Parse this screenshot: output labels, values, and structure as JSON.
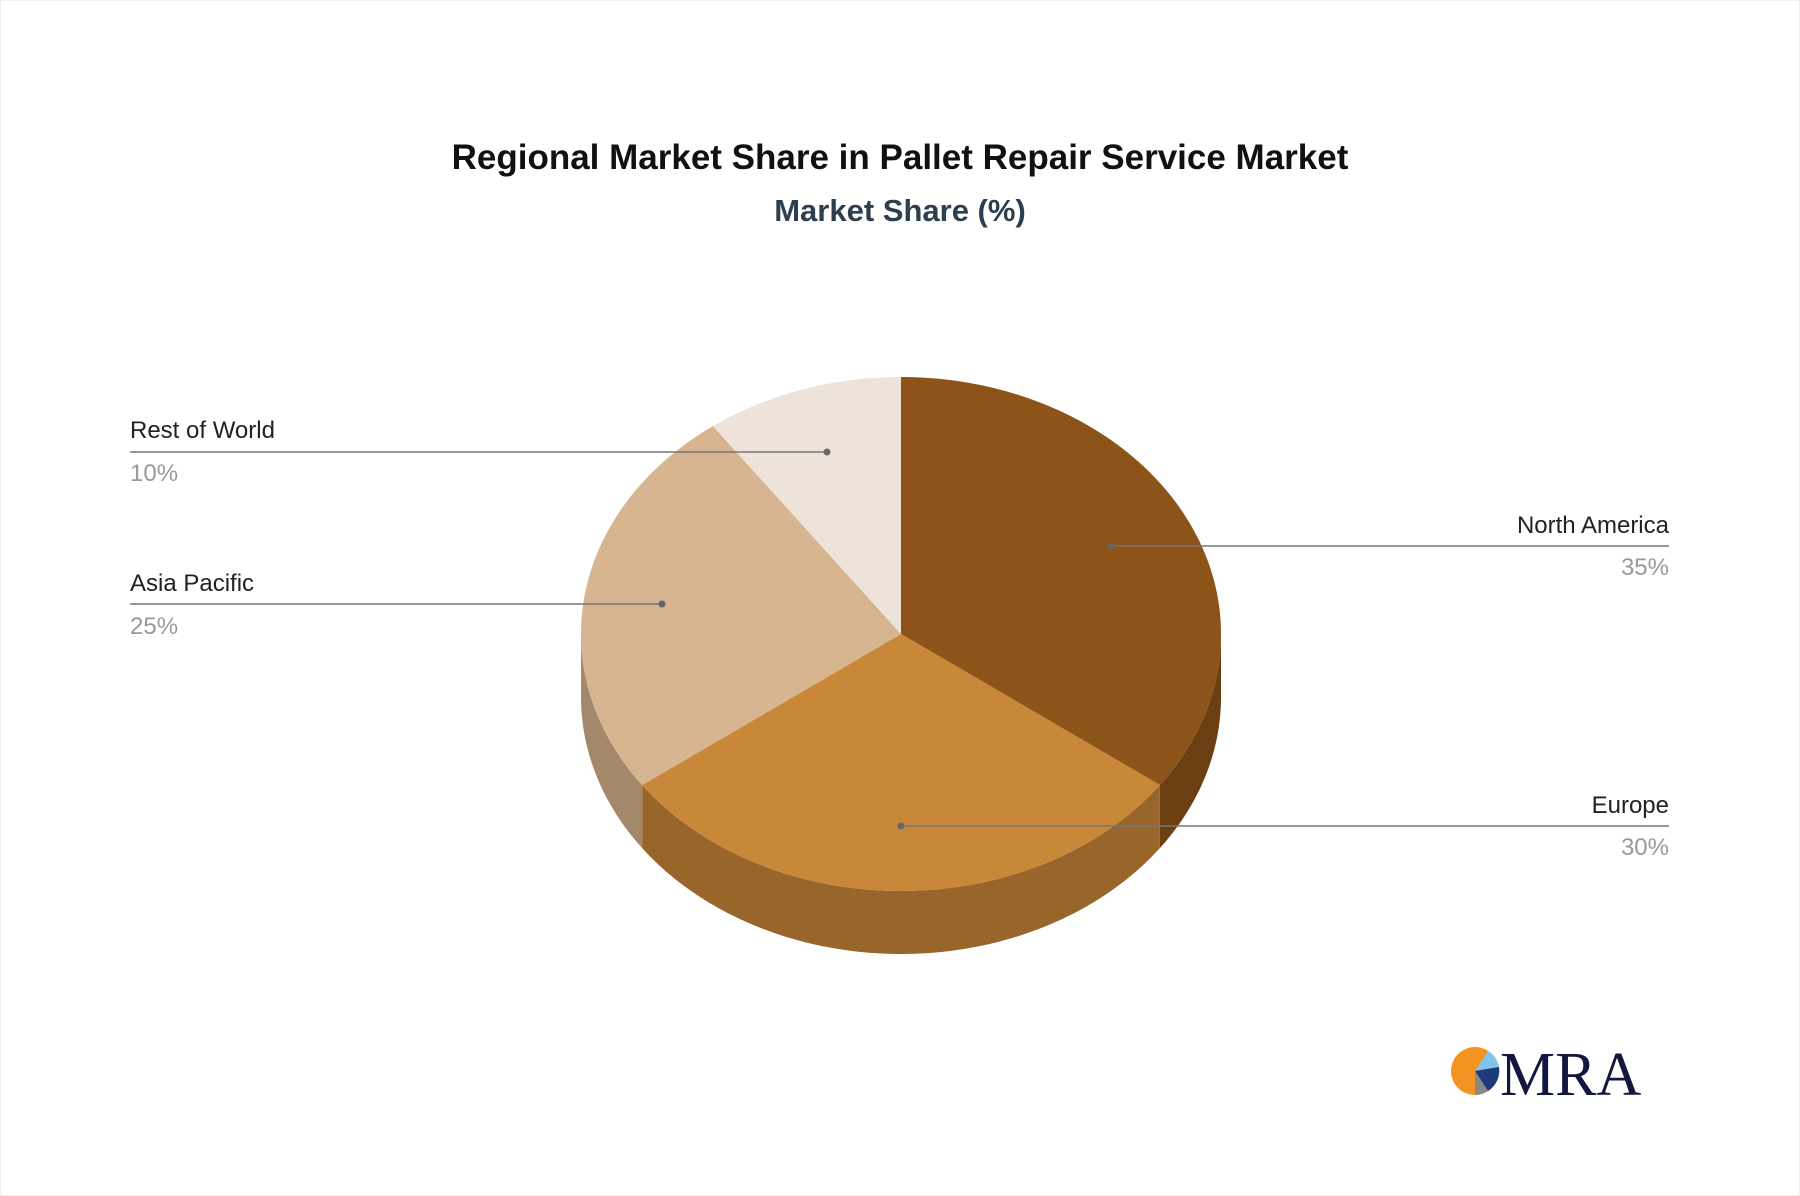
{
  "chart_data": {
    "type": "pie",
    "title": "Regional Market Share in Pallet Repair Service Market",
    "subtitle": "Market Share (%)",
    "slices": [
      {
        "label": "North America",
        "value": 35,
        "display": "35%",
        "color": "#8C5419",
        "side": "#6B3F12"
      },
      {
        "label": "Europe",
        "value": 30,
        "display": "30%",
        "color": "#C9873A",
        "side": "#98652A"
      },
      {
        "label": "Asia Pacific",
        "value": 25,
        "display": "25%",
        "color": "#D7B590",
        "side": "#A3886B"
      },
      {
        "label": "Rest of World",
        "value": 10,
        "display": "10%",
        "color": "#EEE3D9",
        "side": "#BFB3A8"
      }
    ],
    "style": "3d-pie",
    "legend": "none"
  },
  "logo": {
    "text": "MRA"
  }
}
